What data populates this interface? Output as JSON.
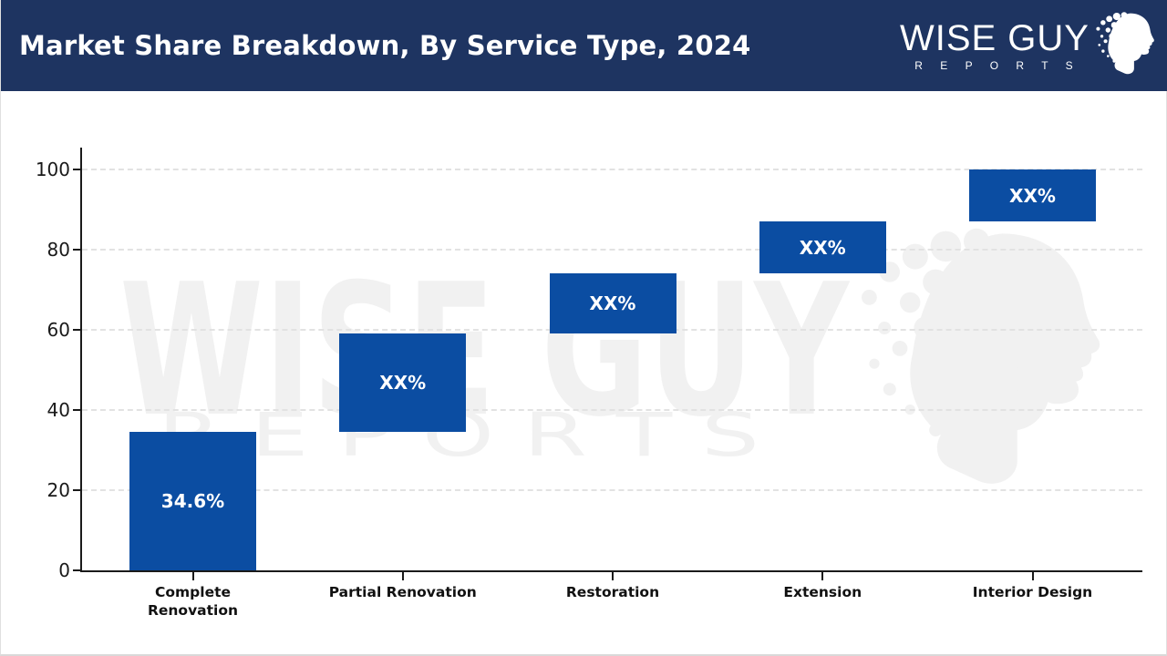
{
  "header": {
    "title": "Market Share Breakdown, By Service Type, 2024",
    "logo": {
      "name": "WISE GUY",
      "sub": "R E P O R T S"
    }
  },
  "watermark": {
    "line1": "WISE GUY",
    "line2": "R E P O R T S"
  },
  "chart_data": {
    "type": "bar",
    "subtype": "floating-waterfall",
    "title": "Market Share Breakdown, By Service Type, 2024",
    "xlabel": "",
    "ylabel": "",
    "categories": [
      "Complete\nRenovation",
      "Partial Renovation",
      "Restoration",
      "Extension",
      "Interior Design"
    ],
    "series": [
      {
        "name": "Market share (%)",
        "segments": [
          {
            "category": "Complete Renovation",
            "start": 0,
            "end": 34.6,
            "label": "34.6%"
          },
          {
            "category": "Partial Renovation",
            "start": 34.6,
            "end": 59,
            "label": "XX%"
          },
          {
            "category": "Restoration",
            "start": 59,
            "end": 74,
            "label": "XX%"
          },
          {
            "category": "Extension",
            "start": 74,
            "end": 87,
            "label": "XX%"
          },
          {
            "category": "Interior Design",
            "start": 87,
            "end": 100,
            "label": "XX%"
          }
        ]
      }
    ],
    "yticks": [
      0,
      20,
      40,
      60,
      80,
      100
    ],
    "ylim": [
      0,
      105.5
    ],
    "grid": {
      "horizontal": true,
      "style": "dashed"
    },
    "legend": "none",
    "colors": {
      "bar": "#0b4da2",
      "bar_label": "#ffffff",
      "axis": "#1a1a1a",
      "gridline": "#e2e2e2",
      "header_bg": "#1e3461",
      "header_text": "#ffffff",
      "watermark": "#f0f0f0"
    }
  }
}
